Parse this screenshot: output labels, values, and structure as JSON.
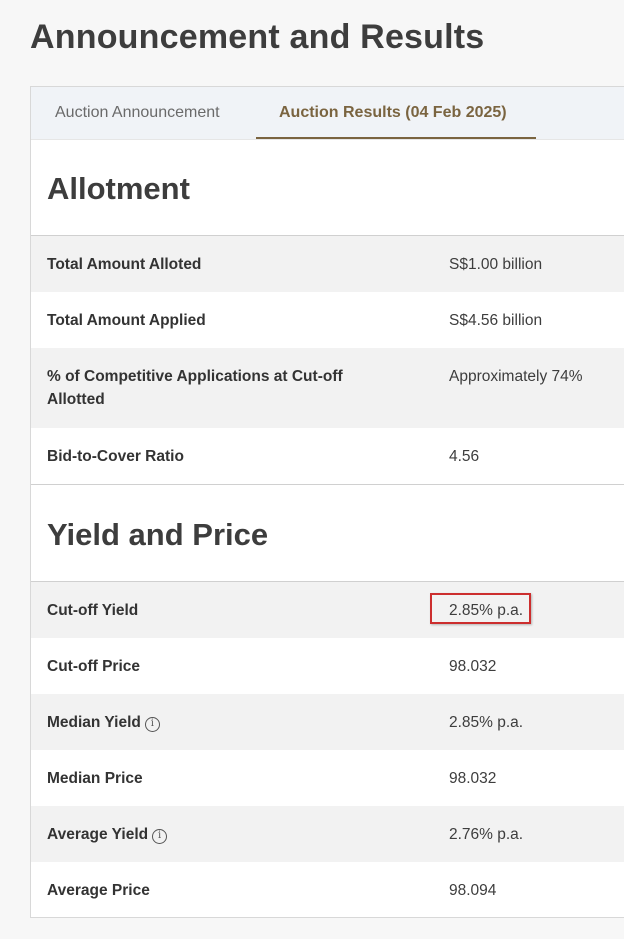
{
  "page": {
    "title": "Announcement and Results"
  },
  "tabs": [
    {
      "label": "Auction Announcement",
      "active": false
    },
    {
      "label": "Auction Results (04 Feb 2025)",
      "active": true
    }
  ],
  "allotment": {
    "title": "Allotment",
    "rows": [
      {
        "label": "Total Amount Alloted",
        "value": "S$1.00 billion"
      },
      {
        "label": "Total Amount Applied",
        "value": "S$4.56 billion"
      },
      {
        "label": "% of Competitive Applications at Cut-off Allotted",
        "value": "Approximately 74%"
      },
      {
        "label": "Bid-to-Cover Ratio",
        "value": "4.56"
      }
    ]
  },
  "yield_price": {
    "title": "Yield and Price",
    "rows": [
      {
        "label": "Cut-off Yield",
        "value": "2.85% p.a.",
        "highlighted": true
      },
      {
        "label": "Cut-off Price",
        "value": "98.032"
      },
      {
        "label": "Median Yield",
        "value": "2.85% p.a.",
        "info": true
      },
      {
        "label": "Median Price",
        "value": "98.032"
      },
      {
        "label": "Average Yield",
        "value": "2.76% p.a.",
        "info": true
      },
      {
        "label": "Average Price",
        "value": "98.094"
      }
    ]
  },
  "colors": {
    "accent": "#7a6440",
    "highlight": "#cc2e2e"
  },
  "icons": {
    "info": "i"
  }
}
